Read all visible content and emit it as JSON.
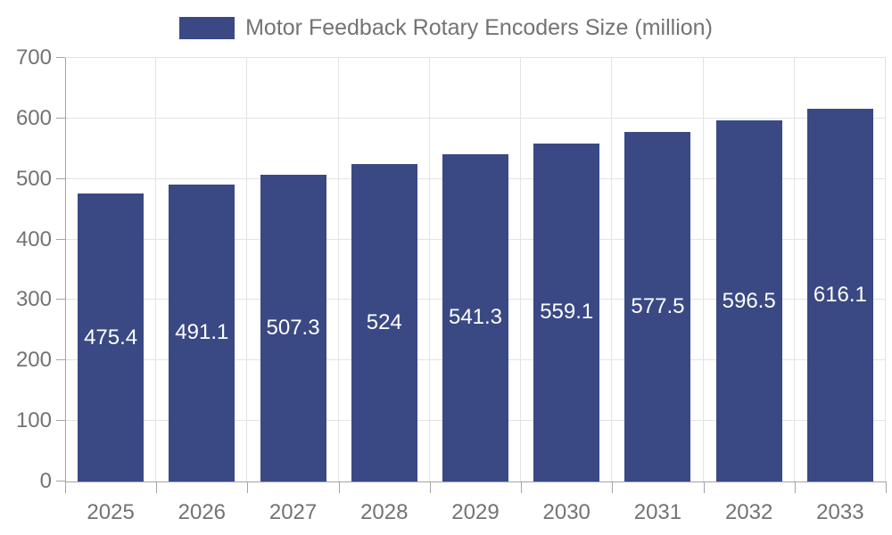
{
  "chart_data": {
    "type": "bar",
    "title": "Motor Feedback Rotary Encoders Size (million)",
    "legend_label": "Motor Feedback Rotary Encoders Size (million)",
    "legend_position": "top",
    "categories": [
      "2025",
      "2026",
      "2027",
      "2028",
      "2029",
      "2030",
      "2031",
      "2032",
      "2033"
    ],
    "values": [
      475.4,
      491.1,
      507.3,
      524,
      541.3,
      559.1,
      577.5,
      596.5,
      616.1
    ],
    "value_labels": [
      "475.4",
      "491.1",
      "507.3",
      "524",
      "541.3",
      "559.1",
      "577.5",
      "596.5",
      "616.1"
    ],
    "xlabel": "",
    "ylabel": "",
    "ylim": [
      0,
      700
    ],
    "yticks": [
      0,
      100,
      200,
      300,
      400,
      500,
      600,
      700
    ],
    "grid": true,
    "colors": {
      "bar": "#3A4984",
      "grid_line": "#E3E3E3",
      "axis_line": "#A3A3A3",
      "axis_text": "#737373",
      "value_label_text": "#FFFFFF",
      "background": "#FFFFFF"
    }
  }
}
